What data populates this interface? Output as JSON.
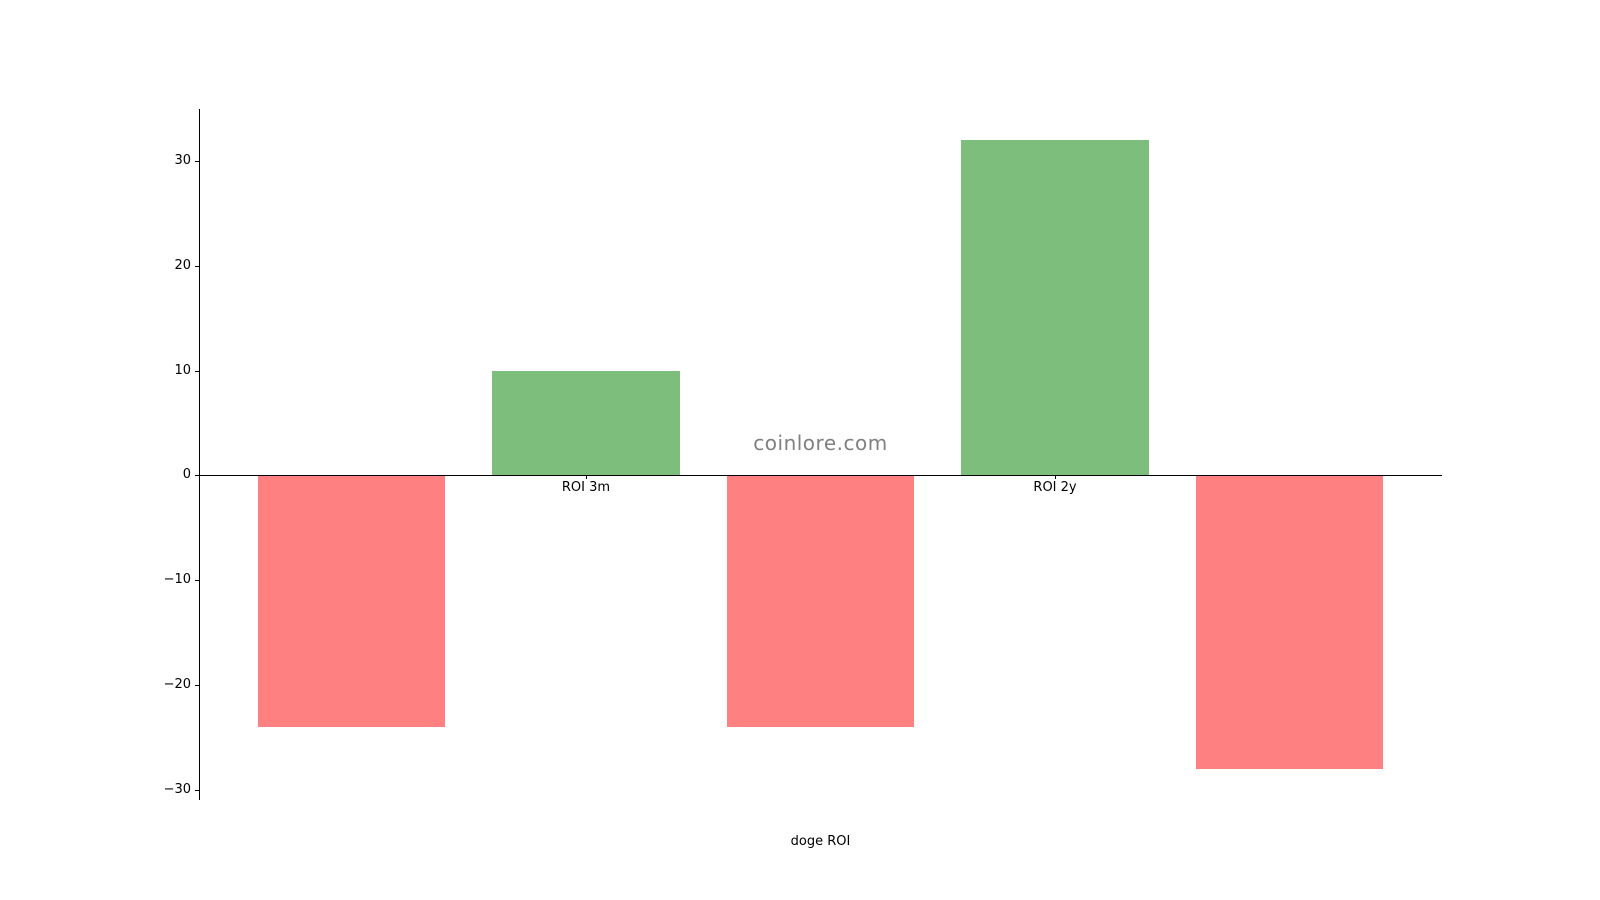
{
  "chart_data": {
    "type": "bar",
    "title": "",
    "xlabel": "doge ROI",
    "ylabel": "",
    "watermark": "coinlore.com",
    "categories": [
      "",
      "ROI 3m",
      "",
      "ROI 2y",
      ""
    ],
    "values": [
      -24,
      10,
      -24,
      32,
      -28
    ],
    "y_ticks": [
      {
        "value": 30,
        "label": "30"
      },
      {
        "value": 20,
        "label": "20"
      },
      {
        "value": 10,
        "label": "10"
      },
      {
        "value": 0,
        "label": "0"
      },
      {
        "value": -10,
        "label": "−10"
      },
      {
        "value": -20,
        "label": "−20"
      },
      {
        "value": -30,
        "label": "−30"
      }
    ],
    "ylim": [
      -31,
      35
    ],
    "xlim": [
      -0.65,
      4.65
    ],
    "bar_width_units": 0.8,
    "grid": false,
    "legend": null,
    "colors": {
      "positive": "#7dbe7d",
      "negative": "#ff8080",
      "axis": "#000000",
      "tick_label": "#000000",
      "watermark": "#808080",
      "background": "#ffffff"
    }
  }
}
